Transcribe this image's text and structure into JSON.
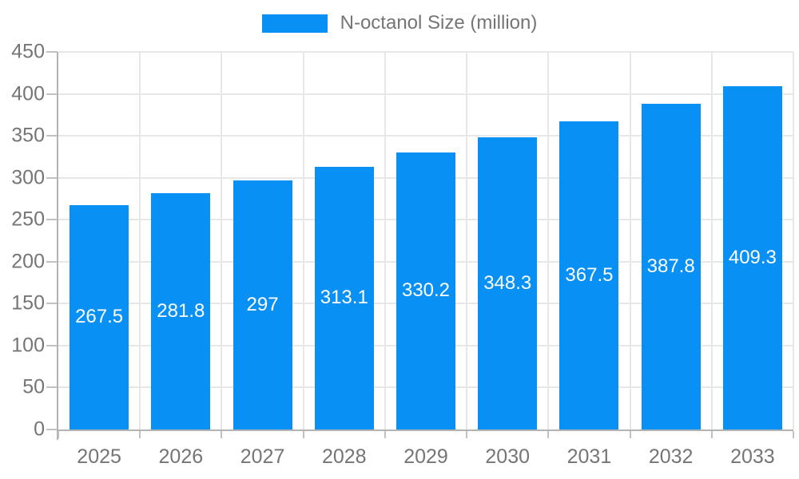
{
  "chart_data": {
    "type": "bar",
    "title": "",
    "legend": "N-octanol Size (million)",
    "legend_position": "top-center",
    "categories": [
      "2025",
      "2026",
      "2027",
      "2028",
      "2029",
      "2030",
      "2031",
      "2032",
      "2033"
    ],
    "series": [
      {
        "name": "N-octanol Size (million)",
        "values": [
          267.5,
          281.8,
          297,
          313.1,
          330.2,
          348.3,
          367.5,
          387.8,
          409.3
        ]
      }
    ],
    "value_labels": [
      "267.5",
      "281.8",
      "297",
      "313.1",
      "330.2",
      "348.3",
      "367.5",
      "387.8",
      "409.3"
    ],
    "xlabel": "",
    "ylabel": "",
    "ylim": [
      0,
      450
    ],
    "ytick_step": 50,
    "grid": "on",
    "colors": {
      "bar": "#0890f5",
      "grid": "#e7e7e7",
      "axis": "#b3b3b3",
      "tick": "#c2c2c2",
      "axis_text": "#757575",
      "bar_label_text": "#ffffff",
      "background": "#ffffff"
    }
  }
}
